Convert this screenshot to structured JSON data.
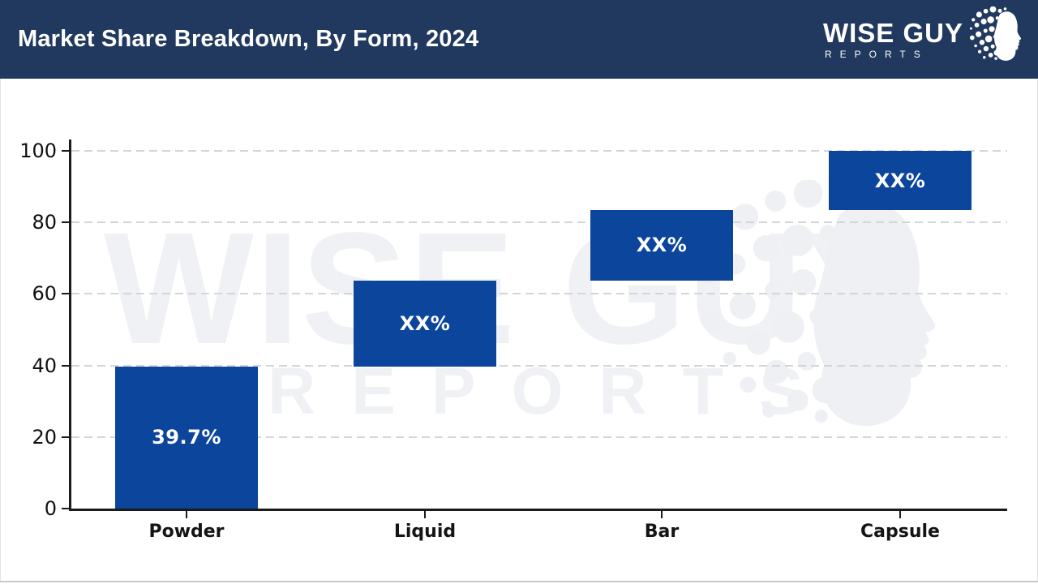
{
  "header": {
    "title": "Market Share Breakdown, By Form, 2024",
    "logo": {
      "line1": "WISE GUY",
      "line2": "REPORTS"
    }
  },
  "watermark": {
    "line1": "WISE GUY",
    "line2": "REPORTS"
  },
  "colors": {
    "header_bg": "#21395e",
    "bar": "#0b459c",
    "grid": "#d2d6d9",
    "axis": "#1b1b1b",
    "watermark": "#f0f1f4",
    "bar_label_text": "#ffffff",
    "title_text": "#ffffff"
  },
  "chart_data": {
    "type": "bar",
    "variant": "waterfall",
    "title": "Market Share Breakdown, By Form, 2024",
    "categories": [
      "Powder",
      "Liquid",
      "Bar",
      "Capsule"
    ],
    "segments": [
      {
        "category": "Powder",
        "start": 0,
        "end": 39.7,
        "value_label": "39.7%"
      },
      {
        "category": "Liquid",
        "start": 39.7,
        "end": 63.8,
        "value_label": "XX%"
      },
      {
        "category": "Bar",
        "start": 63.8,
        "end": 83.4,
        "value_label": "XX%"
      },
      {
        "category": "Capsule",
        "start": 83.4,
        "end": 100,
        "value_label": "XX%"
      }
    ],
    "yticks": [
      0,
      20,
      40,
      60,
      80,
      100
    ],
    "ylim": [
      0,
      105
    ],
    "xlabel": "",
    "ylabel": "",
    "grid": {
      "horizontal": true,
      "style": "dashed",
      "behind_bars": true
    },
    "legend": null
  }
}
